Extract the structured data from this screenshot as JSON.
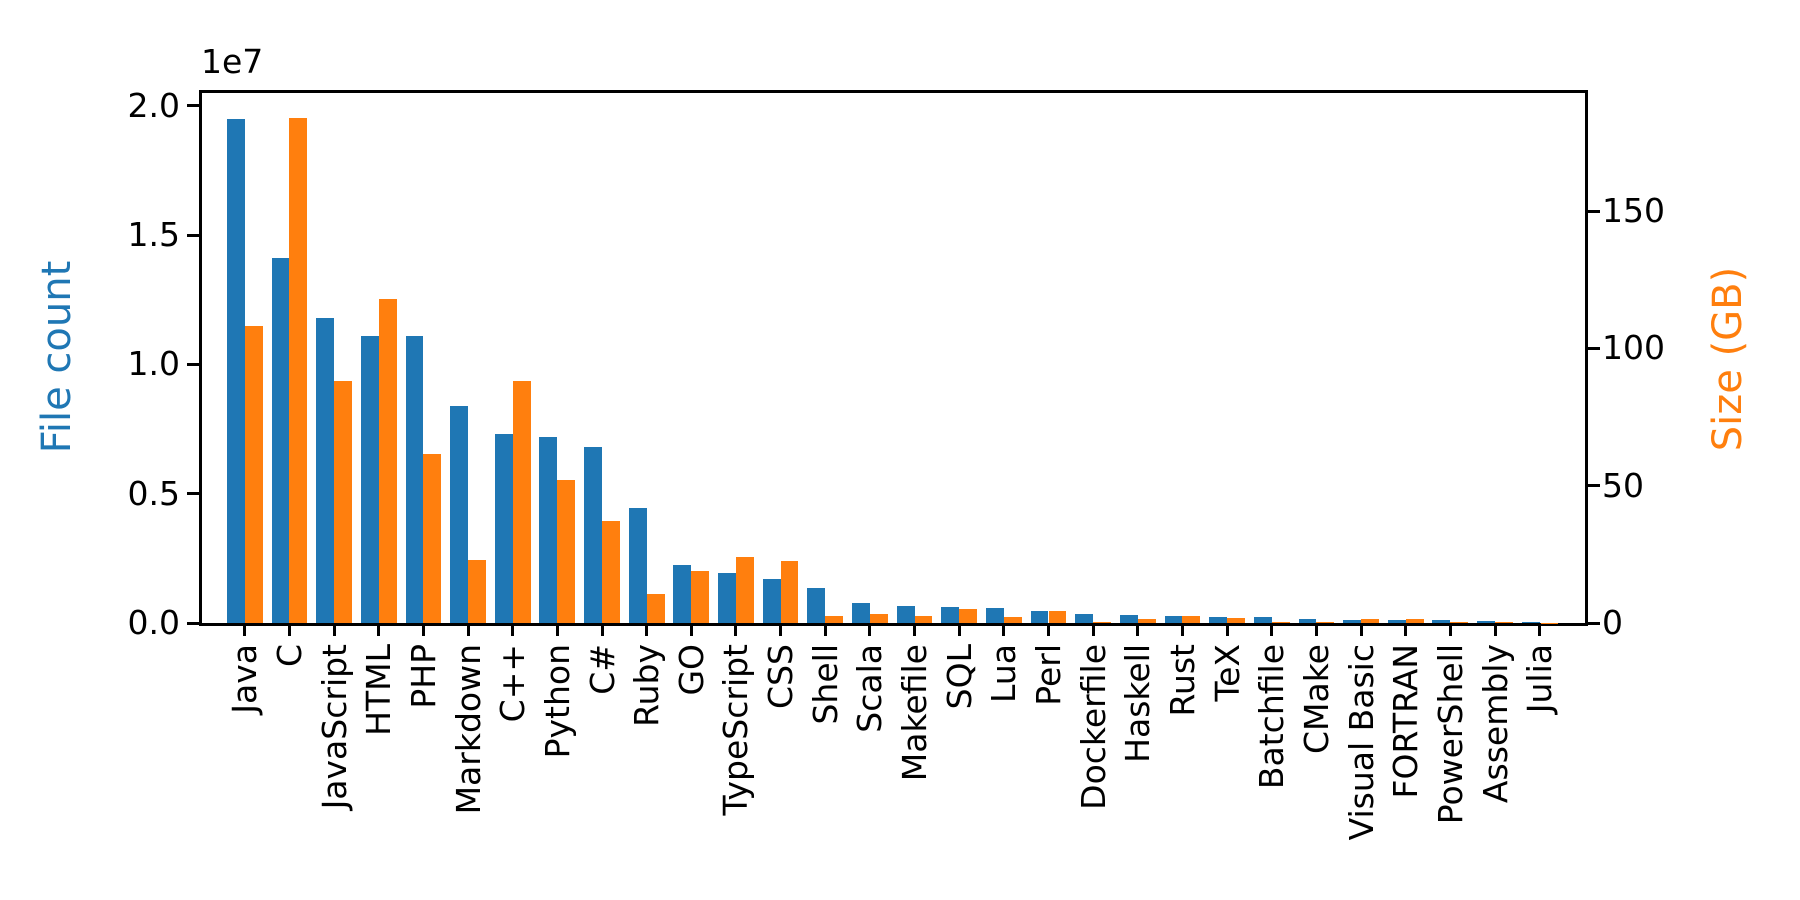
{
  "chart_data": {
    "type": "bar",
    "title": "",
    "categories": [
      "Java",
      "C",
      "JavaScript",
      "HTML",
      "PHP",
      "Markdown",
      "C++",
      "Python",
      "C#",
      "Ruby",
      "GO",
      "TypeScript",
      "CSS",
      "Shell",
      "Scala",
      "Makefile",
      "SQL",
      "Lua",
      "Perl",
      "Dockerfile",
      "Haskell",
      "Rust",
      "TeX",
      "Batchfile",
      "CMake",
      "Visual Basic",
      "FORTRAN",
      "PowerShell",
      "Assembly",
      "Julia"
    ],
    "series": [
      {
        "name": "File count",
        "axis": "left",
        "color": "#1f77b4",
        "values": [
          19500000,
          14100000,
          11800000,
          11100000,
          11100000,
          8400000,
          7300000,
          7200000,
          6800000,
          4450000,
          2250000,
          1930000,
          1690000,
          1360000,
          790000,
          660000,
          630000,
          570000,
          460000,
          330000,
          300000,
          290000,
          230000,
          220000,
          150000,
          130000,
          120000,
          100000,
          60000,
          50000
        ]
      },
      {
        "name": "Size (GB)",
        "axis": "right",
        "color": "#ff7f0e",
        "values": [
          108,
          184,
          88,
          118,
          61.5,
          23,
          88,
          52,
          37,
          10.5,
          19,
          24,
          22.5,
          2.6,
          3.2,
          2.6,
          5.2,
          2.3,
          4.4,
          0.5,
          1.5,
          2.4,
          1.9,
          0.2,
          0.2,
          1.6,
          1.5,
          0.3,
          0.5,
          0.15
        ]
      }
    ],
    "left_axis": {
      "label": "File count",
      "color": "#1f77b4",
      "offset_text": "1e7",
      "lim": [
        0,
        20500000
      ],
      "ticks": [
        {
          "value": 0,
          "label": "0.0"
        },
        {
          "value": 5000000,
          "label": "0.5"
        },
        {
          "value": 10000000,
          "label": "1.0"
        },
        {
          "value": 15000000,
          "label": "1.5"
        },
        {
          "value": 20000000,
          "label": "2.0"
        }
      ]
    },
    "right_axis": {
      "label": "Size (GB)",
      "color": "#ff7f0e",
      "lim": [
        0,
        193
      ],
      "ticks": [
        {
          "value": 0,
          "label": "0"
        },
        {
          "value": 50,
          "label": "50"
        },
        {
          "value": 100,
          "label": "100"
        },
        {
          "value": 150,
          "label": "150"
        }
      ]
    },
    "legend": "none",
    "grid": false
  }
}
